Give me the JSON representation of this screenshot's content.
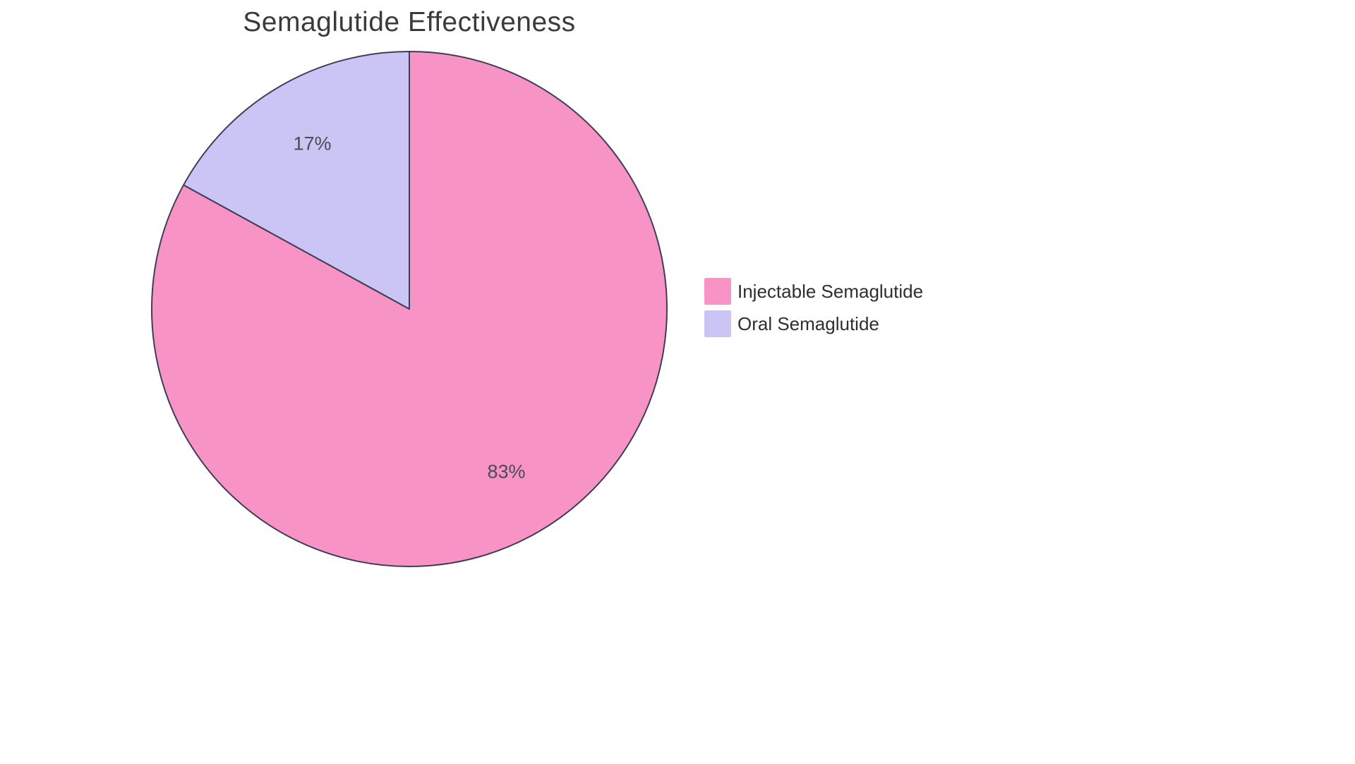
{
  "chart_data": {
    "type": "pie",
    "title": "Semaglutide Effectiveness",
    "labels": [
      "Injectable Semaglutide",
      "Oral Semaglutide"
    ],
    "values": [
      83,
      17
    ],
    "slice_text_labels": [
      "83%",
      "17%"
    ],
    "colors": [
      "#F794C5",
      "#CBC5F6"
    ],
    "stroke_color": "#403D58",
    "slice_label_color": "#4B4B52",
    "title_color": "#3A3A3F",
    "legend_position": "right",
    "start_angle": "top",
    "direction": "clockwise",
    "grid": false
  },
  "legend": {
    "items": [
      {
        "label": "Injectable Semaglutide",
        "color": "#F794C5"
      },
      {
        "label": "Oral Semaglutide",
        "color": "#CBC5F6"
      }
    ]
  }
}
